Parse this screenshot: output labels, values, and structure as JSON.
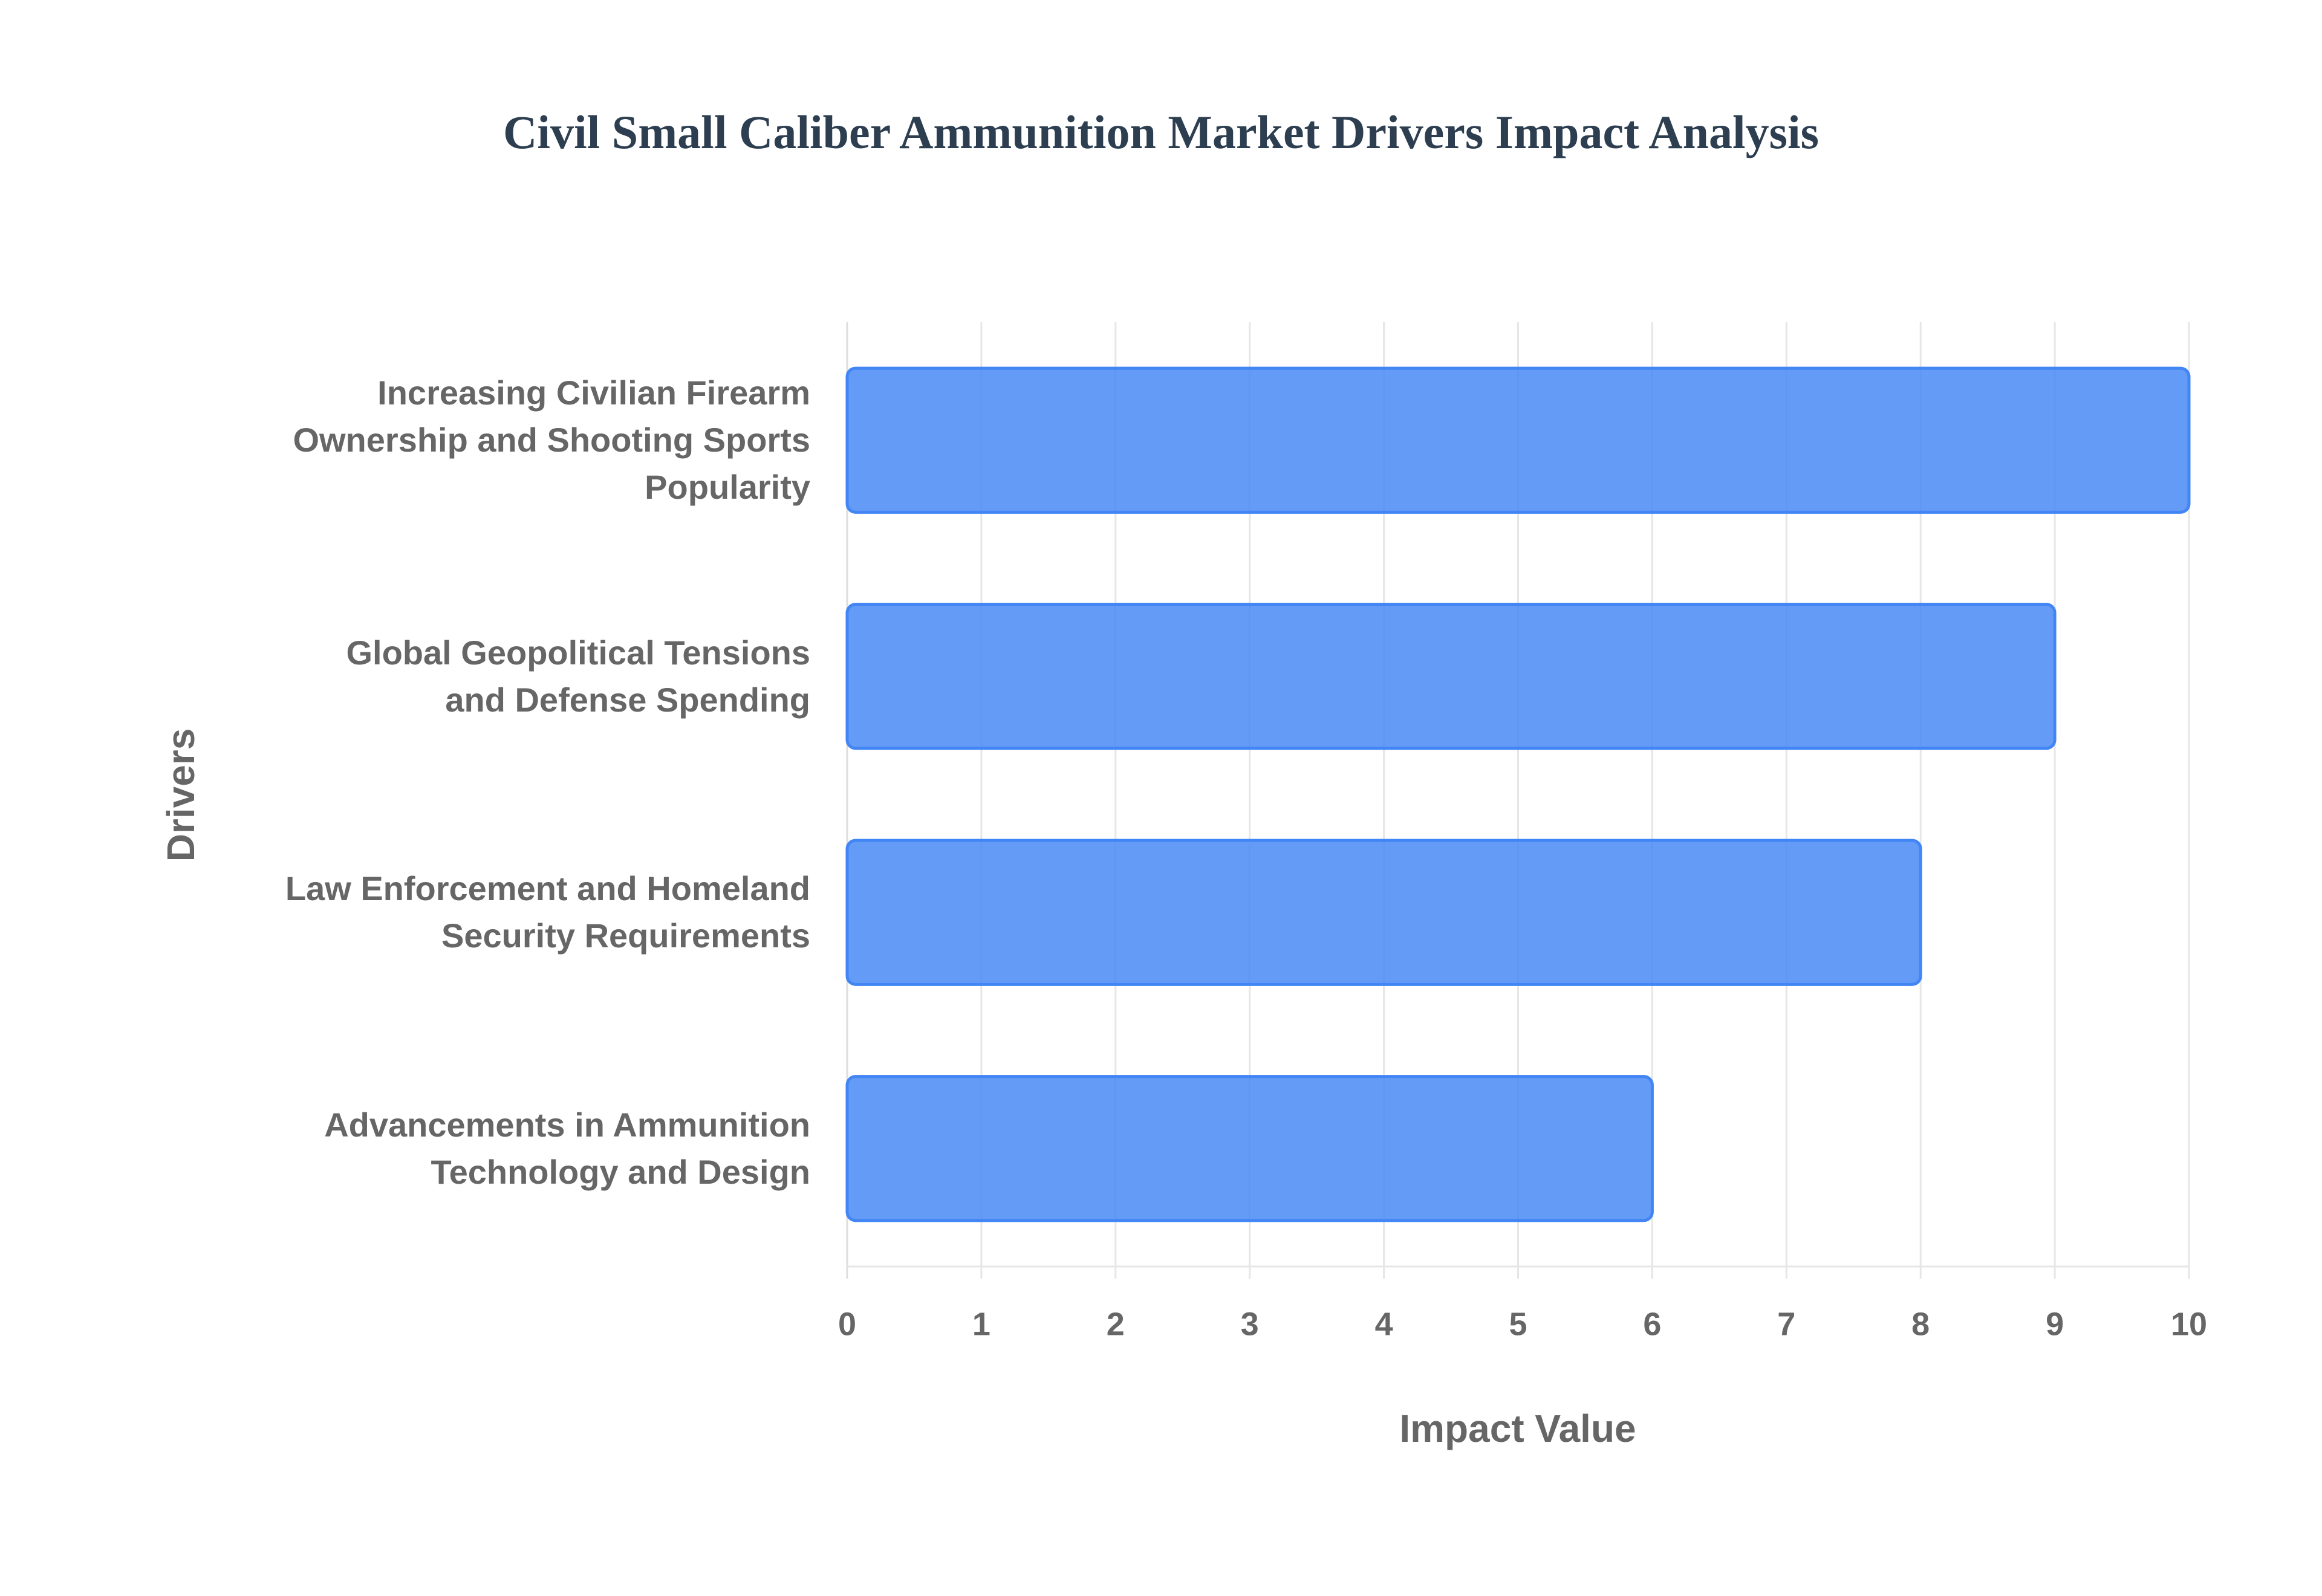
{
  "chart_data": {
    "type": "barh",
    "title": "Civil Small Caliber Ammunition Market Drivers Impact Analysis",
    "xlabel": "Impact Value",
    "ylabel": "Drivers",
    "categories": [
      "Increasing Civilian Firearm\nOwnership and Shooting Sports\nPopularity",
      "Global Geopolitical Tensions\nand Defense Spending",
      "Law Enforcement and Homeland\nSecurity Requirements",
      "Advancements in Ammunition\nTechnology and Design"
    ],
    "values": [
      10,
      9,
      8,
      6
    ],
    "color": "#4285f4",
    "xlim": [
      0,
      10
    ],
    "xticks": [
      0,
      1,
      2,
      3,
      4,
      5,
      6,
      7,
      8,
      9,
      10
    ],
    "grid": true
  }
}
